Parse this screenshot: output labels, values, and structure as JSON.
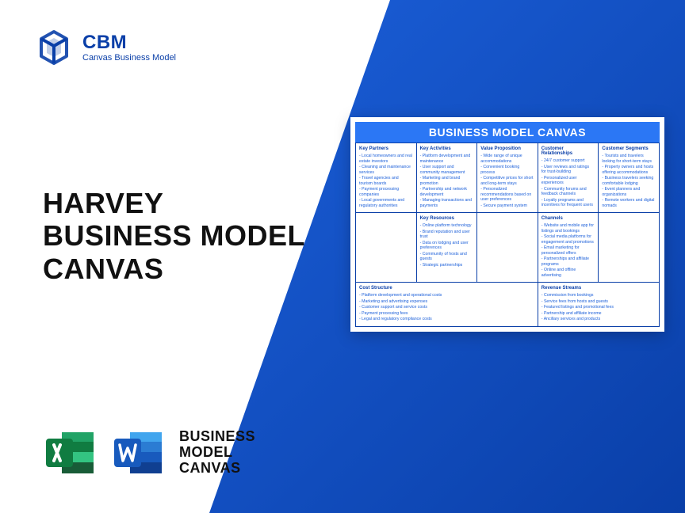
{
  "colors": {
    "brand_blue": "#0a3fa8",
    "accent_blue": "#2b77f5",
    "gradient_start": "#1b5fd9",
    "gradient_end": "#0a3fa8",
    "text_dark": "#111111",
    "background": "#ffffff"
  },
  "logo": {
    "brand": "CBM",
    "subtitle": "Canvas Business Model"
  },
  "main_title": {
    "line1": "HARVEY",
    "line2": "BUSINESS MODEL",
    "line3": "CANVAS"
  },
  "bottom_label": {
    "line1": "BUSINESS",
    "line2": "MODEL",
    "line3": "CANVAS"
  },
  "canvas": {
    "title": "BUSINESS MODEL CANVAS",
    "sections": {
      "key_partners": {
        "heading": "Key Partners",
        "items": [
          "Local homeowners and real estate investors",
          "Cleaning and maintenance services",
          "Travel agencies and tourism boards",
          "Payment processing companies",
          "Local governments and regulatory authorities"
        ]
      },
      "key_activities": {
        "heading": "Key Activities",
        "items": [
          "Platform development and maintenance",
          "User support and community management",
          "Marketing and brand promotion",
          "Partnership and network development",
          "Managing transactions and payments"
        ]
      },
      "value_proposition": {
        "heading": "Value Proposition",
        "items": [
          "Wide range of unique accommodations",
          "Convenient booking process",
          "Competitive prices for short and long-term stays",
          "Personalized recommendations based on user preferences",
          "Secure payment system"
        ]
      },
      "customer_relationships": {
        "heading": "Customer Relationships",
        "items": [
          "24/7 customer support",
          "User reviews and ratings for trust-building",
          "Personalized user experiences",
          "Community forums and feedback channels",
          "Loyalty programs and incentives for frequent users"
        ]
      },
      "customer_segments": {
        "heading": "Customer Segments",
        "items": [
          "Tourists and travelers looking for short-term stays",
          "Property owners and hosts offering accommodations",
          "Business travelers seeking comfortable lodging",
          "Event planners and organizations",
          "Remote workers and digital nomads"
        ]
      },
      "key_resources": {
        "heading": "Key Resources",
        "items": [
          "Online platform technology",
          "Brand reputation and user trust",
          "Data on lodging and user preferences",
          "Community of hosts and guests",
          "Strategic partnerships"
        ]
      },
      "channels": {
        "heading": "Channels",
        "items": [
          "Website and mobile app for listings and bookings",
          "Social media platforms for engagement and promotions",
          "Email marketing for personalized offers",
          "Partnerships and affiliate programs",
          "Online and offline advertising"
        ]
      },
      "cost_structure": {
        "heading": "Cost Structure",
        "items": [
          "Platform development and operational costs",
          "Marketing and advertising expenses",
          "Customer support and service costs",
          "Payment processing fees",
          "Legal and regulatory compliance costs"
        ]
      },
      "revenue_streams": {
        "heading": "Revenue Streams",
        "items": [
          "Commission from bookings",
          "Service fees from hosts and guests",
          "Featured listings and promotional fees",
          "Partnership and affiliate income",
          "Ancillary services and products"
        ]
      }
    }
  }
}
